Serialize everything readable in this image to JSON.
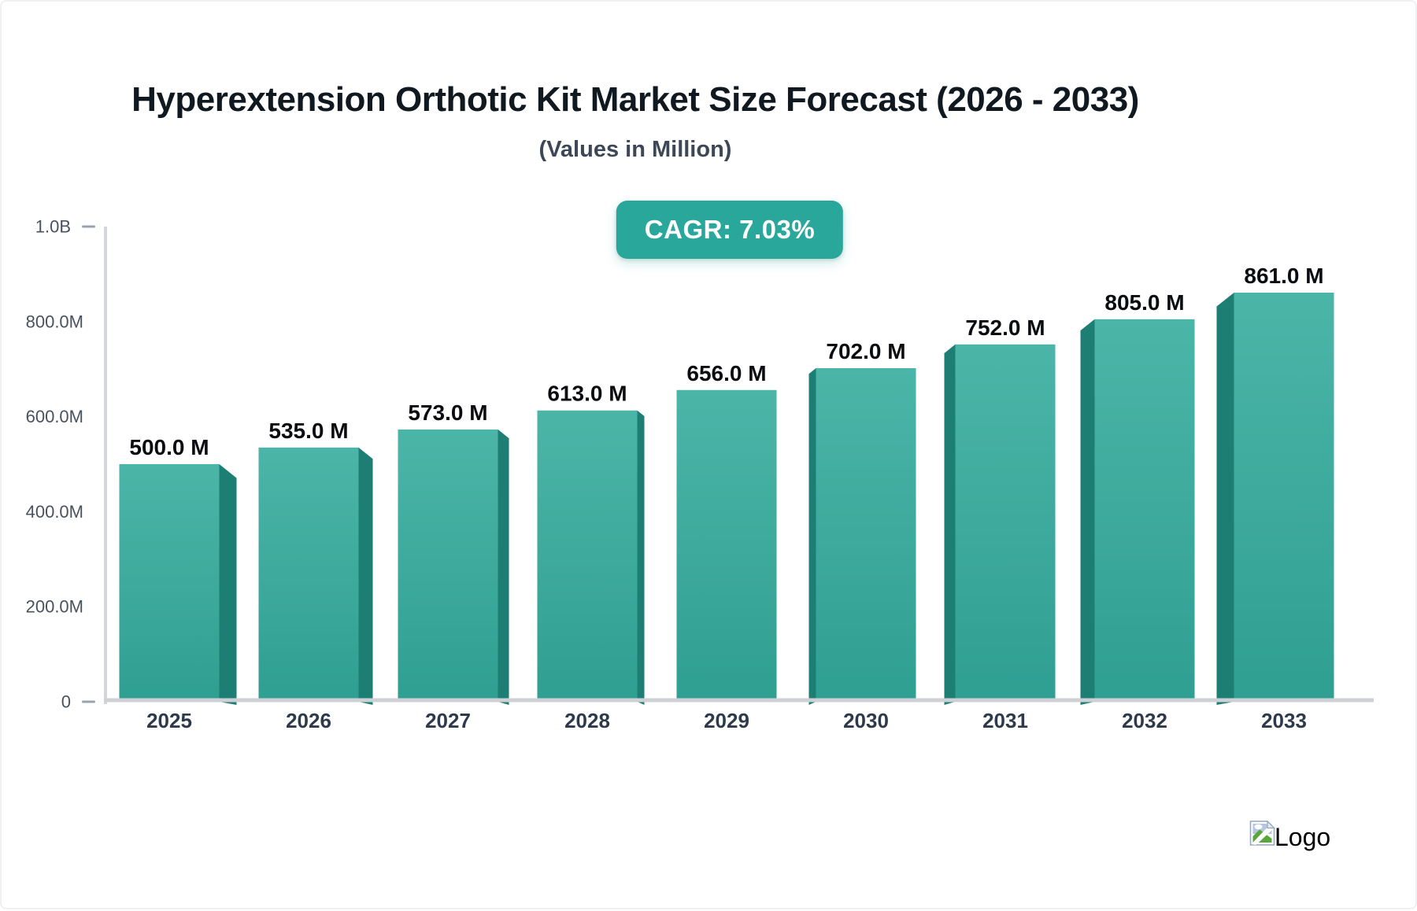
{
  "page": {
    "background": "#ffffff",
    "border_color": "#eef0f2"
  },
  "header": {
    "title": "Hyperextension Orthotic Kit Market Size Forecast (2026 - 2033)",
    "subtitle": "(Values in Million)",
    "cagr_badge": {
      "label": "CAGR: 7.03%",
      "color": "#2aa79b",
      "text_color": "#ffffff"
    }
  },
  "footer": {
    "logo_alt_text": "Logo"
  },
  "chart_data": {
    "type": "bar",
    "title": "Hyperextension Orthotic Kit Market Size Forecast (2026 - 2033)",
    "subtitle": "(Values in Million)",
    "unit": "Million USD",
    "cagr": "7.03%",
    "categories": [
      "2025",
      "2026",
      "2027",
      "2028",
      "2029",
      "2030",
      "2031",
      "2032",
      "2033"
    ],
    "values": [
      500,
      535,
      573,
      613,
      656,
      702,
      752,
      805,
      861
    ],
    "value_labels": [
      "500.0 M",
      "535.0 M",
      "573.0 M",
      "613.0 M",
      "656.0 M",
      "702.0 M",
      "752.0 M",
      "805.0 M",
      "861.0 M"
    ],
    "y_ticks": [
      {
        "label": "1.0B",
        "value": 1000,
        "dash": true
      },
      {
        "label": "800.0M",
        "value": 800,
        "dash": false
      },
      {
        "label": "600.0M",
        "value": 600,
        "dash": false
      },
      {
        "label": "400.0M",
        "value": 400,
        "dash": false
      },
      {
        "label": "200.0M",
        "value": 200,
        "dash": false
      },
      {
        "label": "0",
        "value": 0,
        "dash": true
      }
    ],
    "ylim": [
      0,
      1000
    ],
    "grid": false,
    "legend": false,
    "effect": "3d-perspective-center",
    "colors": {
      "bar_top": "#4bb5a8",
      "bar_bottom": "#2f9f92",
      "bar_side": "#1d7e74",
      "axis_line": "#d3d6da",
      "baseline": "#cdd1d6",
      "tick_dash": "#9aa3ad",
      "y_label": "#4a5260",
      "x_label": "#2e3a4c",
      "value_label": "#0b0c10"
    }
  }
}
